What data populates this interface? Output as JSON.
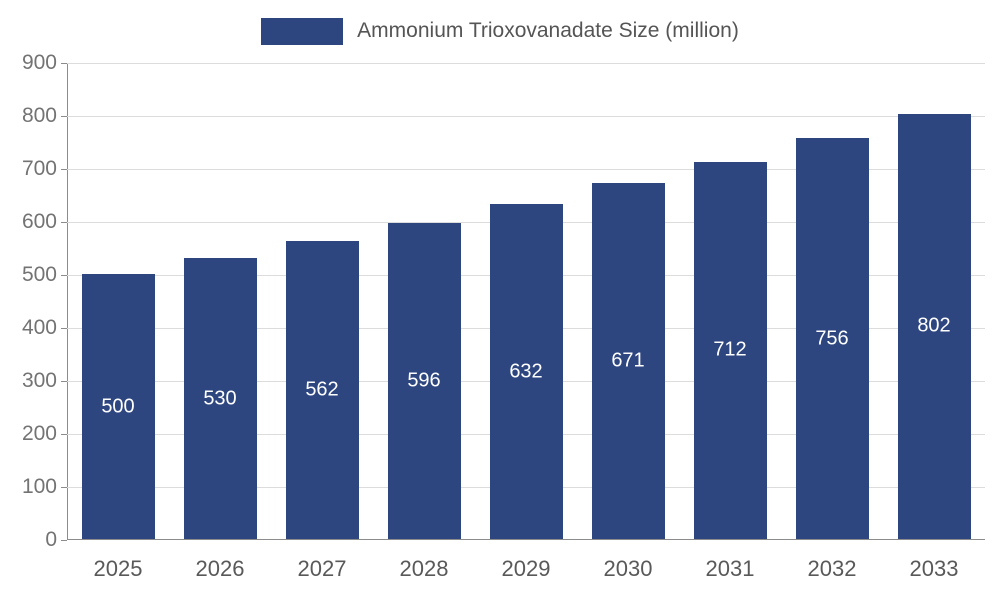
{
  "legend": {
    "label": "Ammonium Trioxovanadate Size (million)"
  },
  "colors": {
    "bar": "#2e4680",
    "grid": "#dcdcdc",
    "axis": "#8c8c8c",
    "ytick_text": "#737373",
    "xtick_text": "#595959",
    "bar_label_text": "#ffffff"
  },
  "chart_data": {
    "type": "bar",
    "title": "Ammonium Trioxovanadate Size (million)",
    "categories": [
      "2025",
      "2026",
      "2027",
      "2028",
      "2029",
      "2030",
      "2031",
      "2032",
      "2033"
    ],
    "values": [
      500,
      530,
      562,
      596,
      632,
      671,
      712,
      756,
      802
    ],
    "xlabel": "",
    "ylabel": "",
    "ylim": [
      0,
      900
    ],
    "ytick_step": 100,
    "yticks": [
      0,
      100,
      200,
      300,
      400,
      500,
      600,
      700,
      800,
      900
    ],
    "grid": true,
    "legend_position": "top",
    "bar_labels_visible": true,
    "bar_label_position": "center"
  }
}
